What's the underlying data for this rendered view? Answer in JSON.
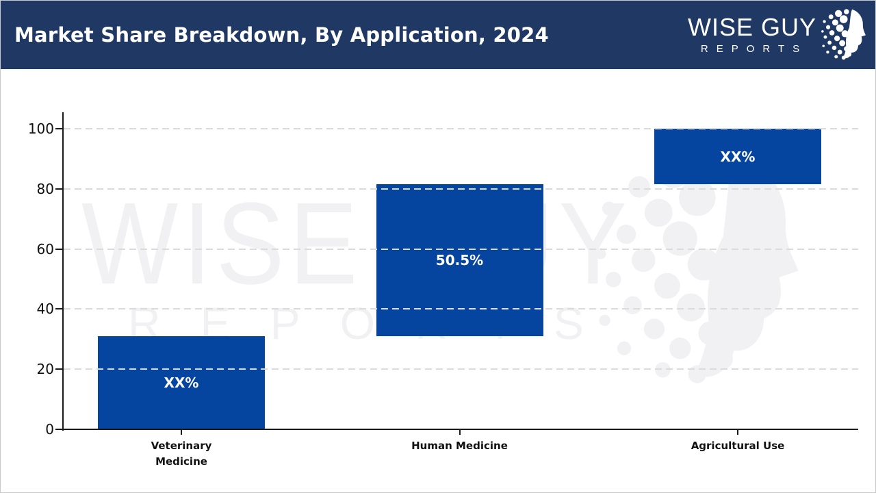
{
  "header": {
    "title": "Market Share Breakdown, By Application, 2024",
    "logo": {
      "wordmark": "WISE GUY",
      "subtext": "REPORTS"
    }
  },
  "watermark": {
    "wordmark": "WISE GUY",
    "subtext": "REPORTS"
  },
  "colors": {
    "header_bg": "#203864",
    "bar_fill": "#05449F",
    "grid": "#DBDBDB",
    "axis": "#1A1A1A",
    "watermark": "#F1F1F4"
  },
  "chart_data": {
    "type": "bar",
    "subtype": "stacked-waterfall",
    "title": "Market Share Breakdown, By Application, 2024",
    "xlabel": "",
    "ylabel": "",
    "categories": [
      "Veterinary\nMedicine",
      "Human Medicine",
      "Agricultural Use"
    ],
    "bars": [
      {
        "category": "Veterinary Medicine",
        "start": 0,
        "end": 31,
        "segment_size": 31,
        "label": "XX%"
      },
      {
        "category": "Human Medicine",
        "start": 31,
        "end": 81.5,
        "segment_size": 50.5,
        "label": "50.5%"
      },
      {
        "category": "Agricultural Use",
        "start": 81.5,
        "end": 100,
        "segment_size": 18.5,
        "label": "XX%"
      }
    ],
    "yticks": [
      0,
      20,
      40,
      60,
      80,
      100
    ],
    "ylim": [
      0,
      105
    ],
    "grid": true,
    "grid_style": "dashed",
    "legend": null
  }
}
